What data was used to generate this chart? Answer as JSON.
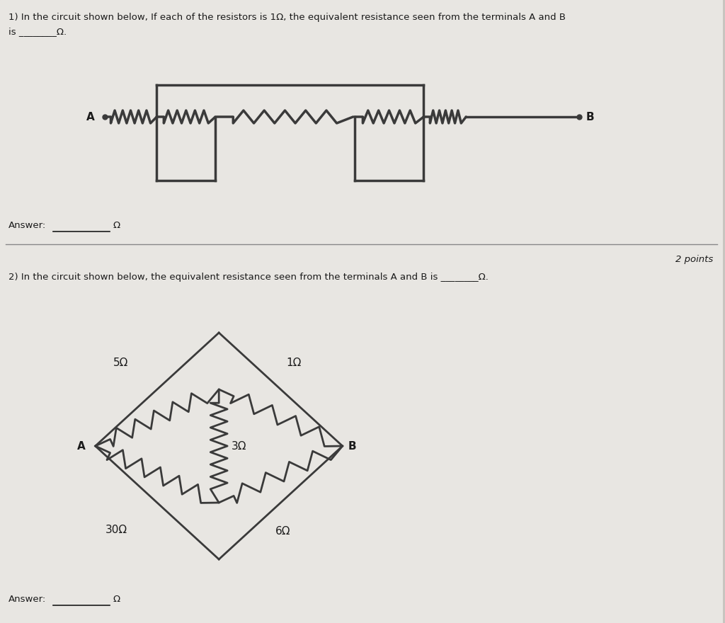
{
  "bg_color": "#c8c5c0",
  "page_color": "#e8e6e2",
  "text_color": "#1a1a1a",
  "line_color": "#3a3a3a",
  "title1": "1) In the circuit shown below, If each of the resistors is 1Ω, the equivalent resistance seen from the terminals A and B",
  "title1b": "is ________Ω.",
  "title2": "2) In the circuit shown below, the equivalent resistance seen from the terminals A and B is ________Ω.",
  "answer1_label": "Answer:",
  "answer2_label": "Answer:",
  "points_label": "2 points",
  "resistor_labels_2": [
    "5Ω",
    "1Ω",
    "3Ω",
    "30Ω",
    "6Ω"
  ]
}
